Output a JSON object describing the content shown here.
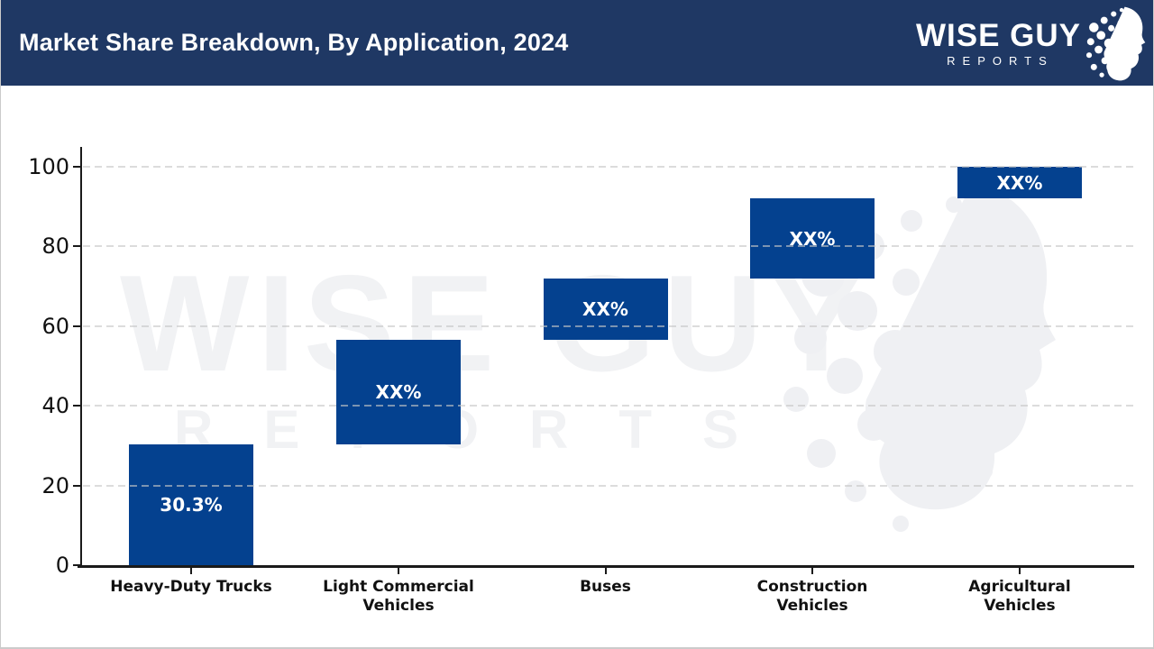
{
  "header": {
    "title": "Market Share Breakdown, By Application, 2024",
    "bg_color": "#1f3864",
    "logo_line1": "WISE GUY",
    "logo_line2": "REPORTS"
  },
  "watermark": {
    "line1": "WISE GUY",
    "line2": "REPORTS"
  },
  "chart_data": {
    "type": "bar",
    "subtype": "waterfall-stacked-breakdown",
    "title": "Market Share Breakdown, By Application, 2024",
    "categories": [
      "Heavy-Duty Trucks",
      "Light Commercial Vehicles",
      "Buses",
      "Construction Vehicles",
      "Agricultural Vehicles"
    ],
    "segments": [
      {
        "category": "Heavy-Duty Trucks",
        "start": 0,
        "end": 30.3,
        "label": "30.3%"
      },
      {
        "category": "Light Commercial Vehicles",
        "start": 30.3,
        "end": 56.5,
        "label": "XX%"
      },
      {
        "category": "Buses",
        "start": 56.5,
        "end": 72,
        "label": "XX%"
      },
      {
        "category": "Construction Vehicles",
        "start": 72,
        "end": 92,
        "label": "XX%"
      },
      {
        "category": "Agricultural Vehicles",
        "start": 92,
        "end": 100,
        "label": "XX%"
      }
    ],
    "y_ticks": [
      0,
      20,
      40,
      60,
      80,
      100
    ],
    "ylim": [
      0,
      105
    ],
    "xlabel": "",
    "ylabel": "",
    "bar_color": "#04418f",
    "grid": "dashed-horizontal-over-bars",
    "legend": "none"
  }
}
